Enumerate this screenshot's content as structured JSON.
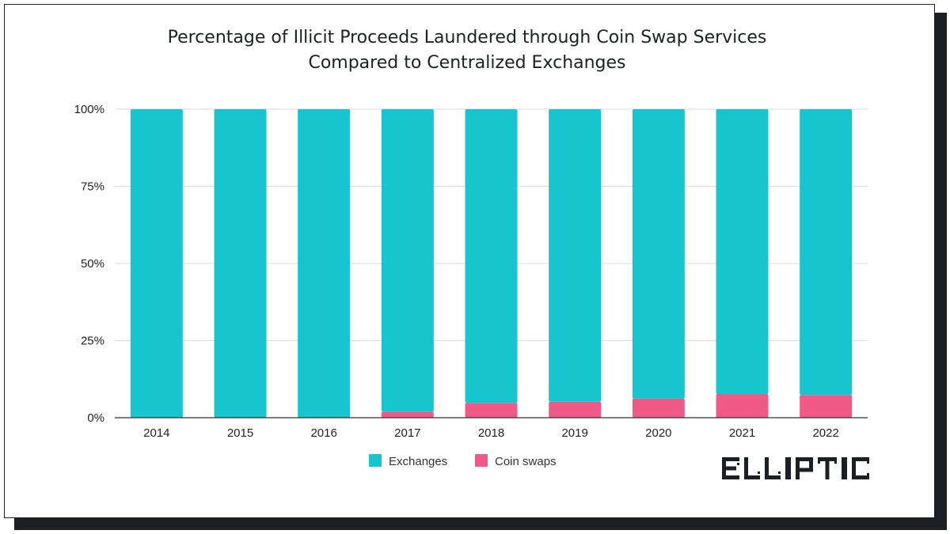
{
  "colors": {
    "exchanges": "#17c5cf",
    "coin_swaps": "#f05a86",
    "grid": "#d9d9d9",
    "axis": "#333333",
    "frame": "#1c2024"
  },
  "brand": {
    "logo_text": "ELLIPTIC"
  },
  "chart_data": {
    "type": "bar",
    "stacked": true,
    "title": "Percentage of Illicit Proceeds Laundered through Coin Swap Services",
    "subtitle": "Compared to Centralized Exchanges",
    "xlabel": "",
    "ylabel": "",
    "categories": [
      "2014",
      "2015",
      "2016",
      "2017",
      "2018",
      "2019",
      "2020",
      "2021",
      "2022"
    ],
    "series": [
      {
        "name": "Exchanges",
        "values": [
          100,
          100,
          100,
          98,
          95.2,
          94.8,
          93.8,
          92.3,
          92.6
        ]
      },
      {
        "name": "Coin swaps",
        "values": [
          0,
          0,
          0,
          2,
          4.8,
          5.2,
          6.2,
          7.7,
          7.4
        ]
      }
    ],
    "ylim": [
      0,
      100
    ],
    "yticks": [
      0,
      25,
      50,
      75,
      100
    ],
    "ytick_labels": [
      "0%",
      "25%",
      "50%",
      "75%",
      "100%"
    ],
    "grid": true,
    "legend_position": "bottom"
  }
}
